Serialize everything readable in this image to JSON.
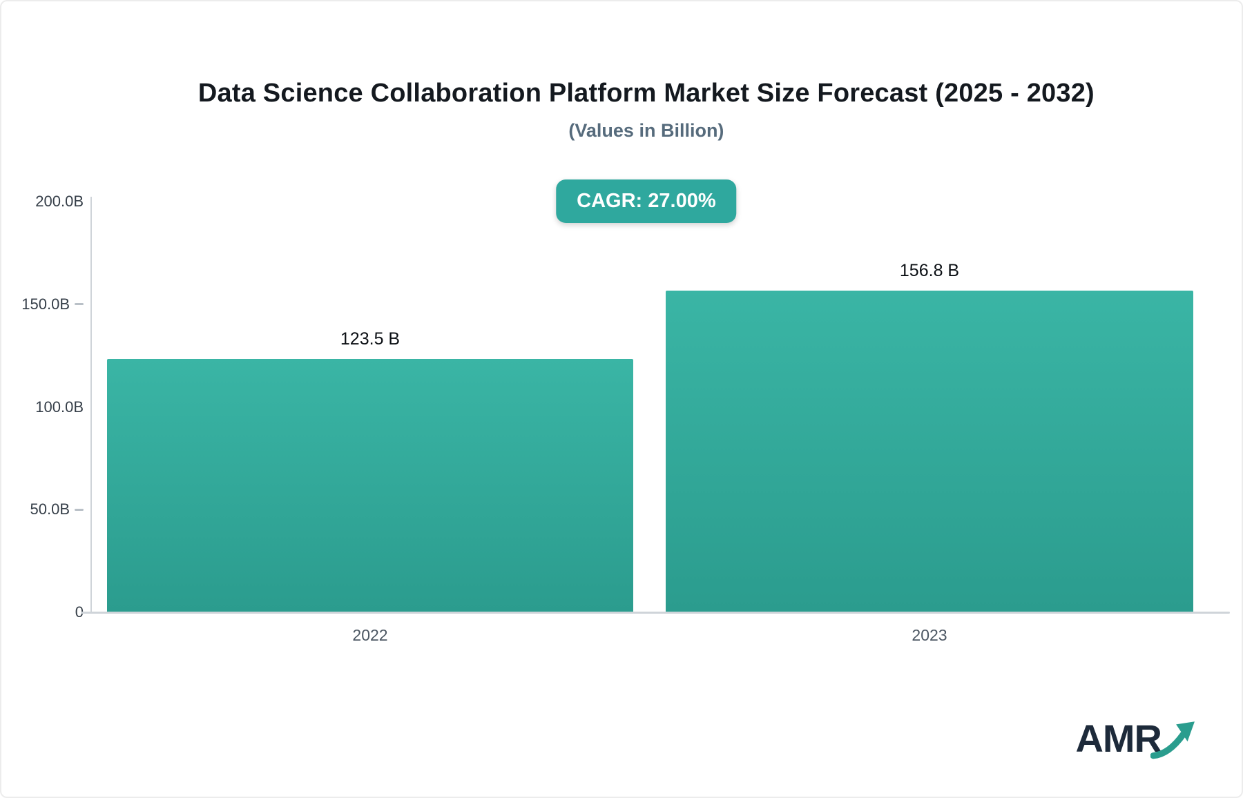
{
  "chart_data": {
    "type": "bar",
    "title": "Data Science Collaboration Platform Market Size Forecast (2025 - 2032)",
    "subtitle": "(Values in Billion)",
    "badge_label": "CAGR: 27.00%",
    "categories": [
      "2022",
      "2023"
    ],
    "values": [
      123.5,
      156.8
    ],
    "value_labels": [
      "123.5 B",
      "156.8 B"
    ],
    "ylim": [
      0,
      200
    ],
    "yticks": [
      "200.0B",
      "150.0B",
      "100.0B",
      "50.0B",
      "0"
    ],
    "xlabel": "",
    "ylabel": "",
    "grid": "off",
    "legend": "none"
  },
  "colors": {
    "bar_top": "#3ab5a5",
    "bar_bottom": "#2b9c8e",
    "badge_bg": "#2fa89e",
    "axis": "#cfd4d9",
    "title_text": "#14191f",
    "subtitle_text": "#566b7c",
    "tick_text": "#353e48",
    "xlabel_text": "#4b5662",
    "value_text": "#0b0f14",
    "logo_text": "#1d2a3a",
    "logo_arrow": "#2a9d8e"
  },
  "logo": {
    "text": "AMR"
  }
}
